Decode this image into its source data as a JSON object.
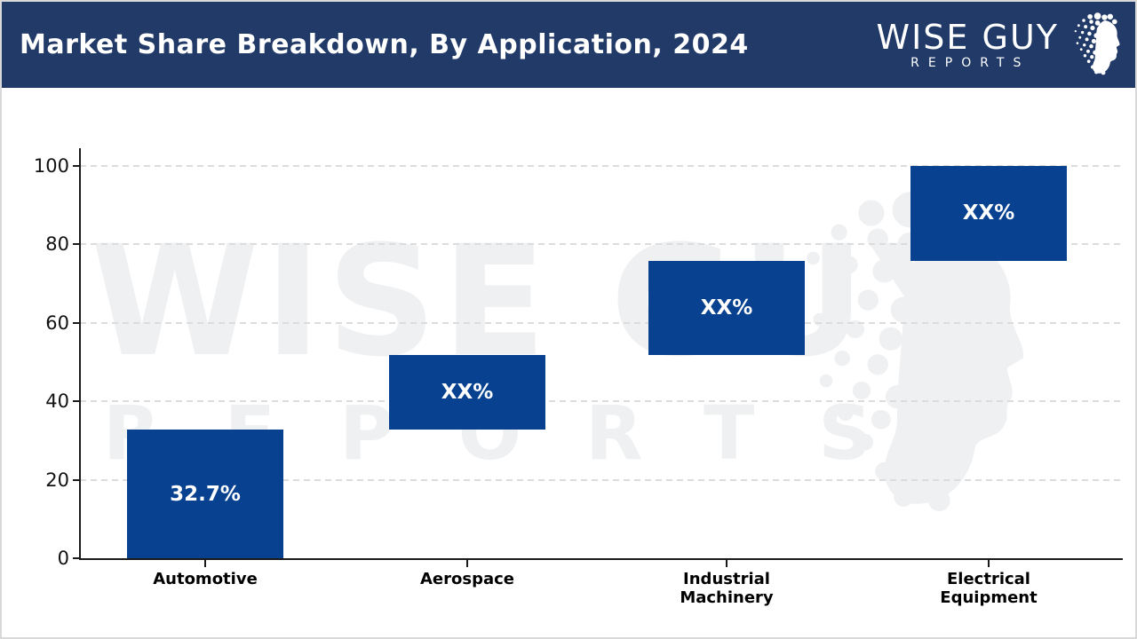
{
  "header": {
    "title": "Market Share Breakdown, By Application, 2024",
    "logo": {
      "brand_line1": "WISE GUY",
      "brand_line2": "REPORTS"
    }
  },
  "watermark": {
    "line1": "WISE GUY",
    "line2": "REPORTS"
  },
  "colors": {
    "header_bg": "#213a68",
    "bar": "#07418f",
    "bar_label": "#ffffff",
    "grid": "#dcdcdc",
    "axis": "#1a1a1a",
    "tick_label": "#111111",
    "watermark": "#eff0f2",
    "border": "#d9d9d9"
  },
  "chart_data": {
    "type": "bar",
    "subtype": "waterfall",
    "title": "Market Share Breakdown, By Application, 2024",
    "xlabel": "",
    "ylabel": "",
    "categories": [
      "Automotive",
      "Aerospace",
      "Industrial Machinery",
      "Electrical Equipment"
    ],
    "category_label_lines": [
      [
        "Automotive"
      ],
      [
        "Aerospace"
      ],
      [
        "Industrial",
        "Machinery"
      ],
      [
        "Electrical",
        "Equipment"
      ]
    ],
    "segments": [
      {
        "category": "Automotive",
        "start": 0,
        "end": 32.7,
        "label": "32.7%"
      },
      {
        "category": "Aerospace",
        "start": 32.7,
        "end": 51.8,
        "label": "XX%"
      },
      {
        "category": "Industrial Machinery",
        "start": 51.8,
        "end": 75.6,
        "label": "XX%"
      },
      {
        "category": "Electrical Equipment",
        "start": 75.6,
        "end": 100,
        "label": "XX%"
      }
    ],
    "yticks": [
      0,
      20,
      40,
      60,
      80,
      100
    ],
    "ylim": [
      0,
      104
    ],
    "grid": "horizontal-dashed",
    "legend": "none"
  }
}
